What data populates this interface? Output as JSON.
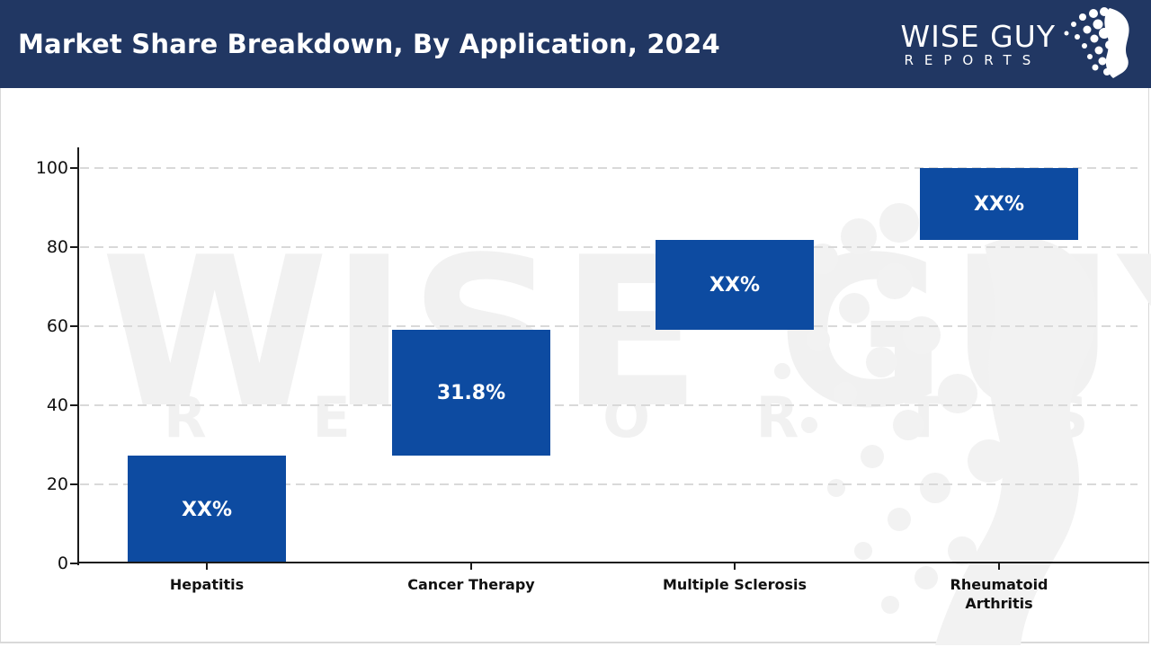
{
  "header": {
    "title": "Market Share Breakdown, By Application, 2024",
    "logo": {
      "line1": "WISE GUY",
      "line2": "REPORTS"
    }
  },
  "watermark": {
    "line1": "WISE GUY",
    "line2": "R E P O R T S"
  },
  "colors": {
    "header_bg": "#213763",
    "bar": "#0d4ba1",
    "grid": "#d9d9d9",
    "axis": "#1a1a1a",
    "watermark": "#f1f1f1",
    "title_text": "#ffffff"
  },
  "chart_data": {
    "type": "bar",
    "subtype": "floating-waterfall",
    "title": "Market Share Breakdown, By Application, 2024",
    "categories": [
      "Hepatitis",
      "Cancer Therapy",
      "Multiple Sclerosis",
      "Rheumatoid Arthritis"
    ],
    "bars": [
      {
        "category": "Hepatitis",
        "start": 0,
        "end": 27.2,
        "label": "XX%"
      },
      {
        "category": "Cancer Therapy",
        "start": 27.2,
        "end": 59.0,
        "label": "31.8%"
      },
      {
        "category": "Multiple Sclerosis",
        "start": 59.0,
        "end": 81.8,
        "label": "XX%"
      },
      {
        "category": "Rheumatoid Arthritis",
        "start": 81.8,
        "end": 100,
        "label": "XX%"
      }
    ],
    "bar_labels": [
      "XX%",
      "31.8%",
      "XX%",
      "XX%"
    ],
    "xlabel": "",
    "ylabel": "",
    "yticks": [
      0,
      20,
      40,
      60,
      80,
      100
    ],
    "ylim": [
      0,
      105
    ],
    "grid": "horizontal-dashed",
    "legend": "none",
    "bar_color": "#0d4ba1"
  }
}
